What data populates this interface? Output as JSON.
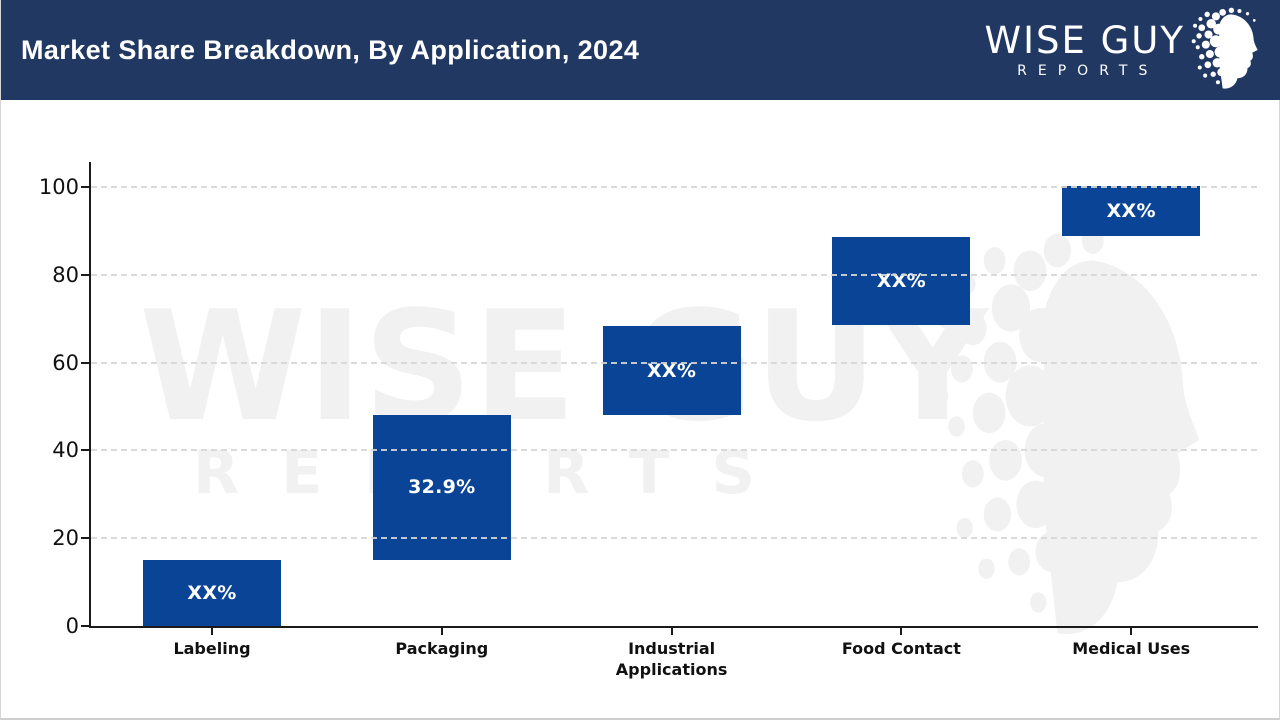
{
  "header": {
    "title": "Market Share Breakdown, By Application, 2024",
    "logo": {
      "line1": "WISE GUY",
      "line2": "REPORTS"
    }
  },
  "watermark": {
    "line1": "WISE GUY",
    "line2": "REPORTS"
  },
  "colors": {
    "header_bg": "#213863",
    "bar": "#0a4496",
    "grid": "#d6d6d6",
    "axis": "#1a1a1a",
    "bar_label_text": "#ffffff",
    "watermark": "#f1f1f1"
  },
  "chart_data": {
    "type": "bar",
    "subtype": "floating-waterfall",
    "title": "Market Share Breakdown, By Application, 2024",
    "xlabel": "",
    "ylabel": "",
    "ylim": [
      0,
      105
    ],
    "yticks": [
      0,
      20,
      40,
      60,
      80,
      100
    ],
    "grid": "horizontal-dashed",
    "legend": "none",
    "categories": [
      [
        "Labeling"
      ],
      [
        "Packaging"
      ],
      [
        "Industrial",
        "Applications"
      ],
      [
        "Food Contact"
      ],
      [
        "Medical Uses"
      ]
    ],
    "segments": [
      {
        "category": "Labeling",
        "base": 0,
        "top": 15,
        "label": "XX%"
      },
      {
        "category": "Packaging",
        "base": 15.1,
        "top": 48,
        "label": "32.9%"
      },
      {
        "category": "Industrial Applications",
        "base": 48,
        "top": 68.3,
        "label": "XX%"
      },
      {
        "category": "Food Contact",
        "base": 68.6,
        "top": 88.6,
        "label": "XX%"
      },
      {
        "category": "Medical Uses",
        "base": 88.8,
        "top": 100.2,
        "label": "XX%"
      }
    ]
  }
}
